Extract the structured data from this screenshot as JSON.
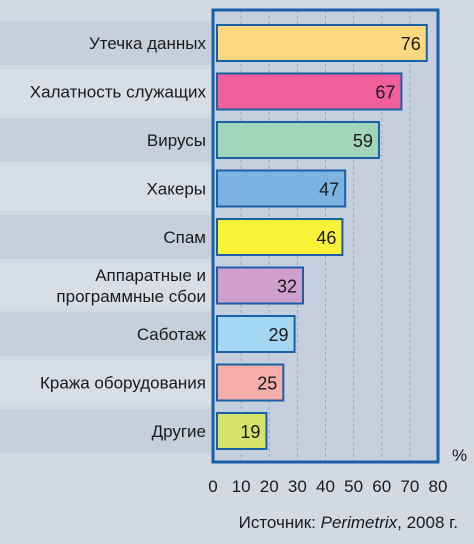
{
  "chart_data": {
    "type": "bar",
    "orientation": "horizontal",
    "categories": [
      [
        "Утечка данных"
      ],
      [
        "Халатность служащих"
      ],
      [
        "Вирусы"
      ],
      [
        "Хакеры"
      ],
      [
        "Спам"
      ],
      [
        "Аппаратные и",
        "программные сбои"
      ],
      [
        "Саботаж"
      ],
      [
        "Кража оборудования"
      ],
      [
        "Другие"
      ]
    ],
    "values": [
      76,
      67,
      59,
      47,
      46,
      32,
      29,
      25,
      19
    ],
    "colors": [
      "#fcd980",
      "#ee5f9c",
      "#a3d5bd",
      "#7bb4e2",
      "#faf238",
      "#cfa0cc",
      "#a3d7f4",
      "#f6aeaa",
      "#d4e46a"
    ],
    "xlim": [
      0,
      80
    ],
    "xticks": [
      0,
      10,
      20,
      30,
      40,
      50,
      60,
      70,
      80
    ],
    "unit": "%",
    "grid": true
  },
  "source": {
    "prefix": "Источник: ",
    "name": "Perimetrix",
    "suffix": ", 2008 г."
  }
}
